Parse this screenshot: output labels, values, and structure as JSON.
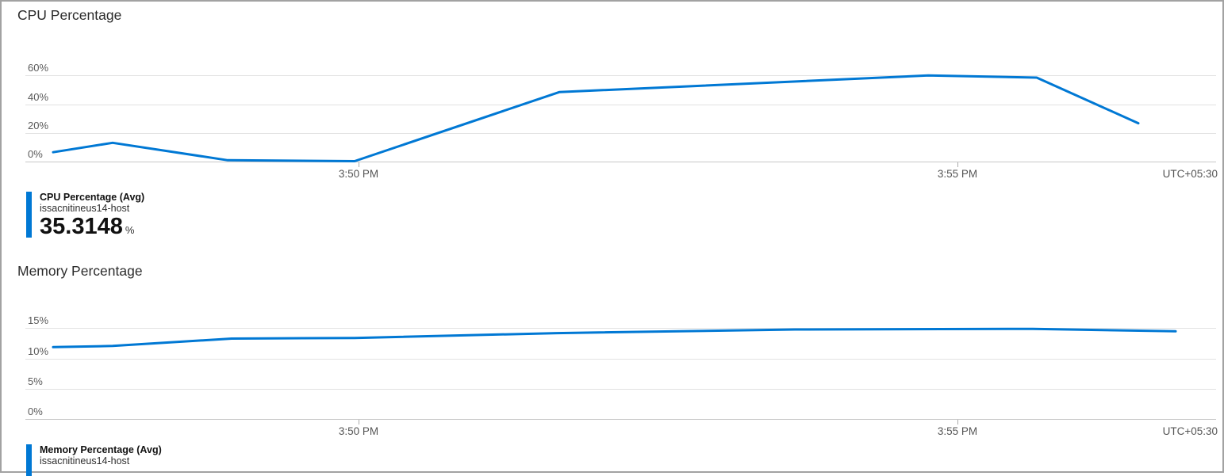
{
  "chart_data": [
    {
      "type": "line",
      "title": "CPU Percentage",
      "color": "#0078d4",
      "grid": true,
      "ylim": [
        0,
        70
      ],
      "x_unit": "fraction-of-plot-width",
      "y_axis": {
        "max": 70,
        "ticks": [
          {
            "v": 0,
            "label": "0%"
          },
          {
            "v": 20,
            "label": "20%"
          },
          {
            "v": 40,
            "label": "40%"
          },
          {
            "v": 60,
            "label": "60%"
          }
        ]
      },
      "x_axis": {
        "ticks": [
          {
            "pos": 0.2798,
            "label": "3:50 PM"
          },
          {
            "pos": 0.7828,
            "label": "3:55 PM"
          }
        ],
        "timezone_label": "UTC+05:30"
      },
      "series": [
        {
          "name": "CPU Percentage (Avg)",
          "resource": "issacnitineus14-host",
          "avg_display": "35.3148",
          "unit": "%",
          "points": [
            [
              0.0233,
              7
            ],
            [
              0.0733,
              13.5
            ],
            [
              0.1699,
              1.5
            ],
            [
              0.2765,
              0.8
            ],
            [
              0.4484,
              48.5
            ],
            [
              0.7582,
              60
            ],
            [
              0.8494,
              58.5
            ],
            [
              0.9347,
              27
            ]
          ]
        }
      ]
    },
    {
      "type": "line",
      "title": "Memory Percentage",
      "color": "#0078d4",
      "grid": true,
      "ylim": [
        0,
        17
      ],
      "x_unit": "fraction-of-plot-width",
      "y_axis": {
        "max": 17,
        "ticks": [
          {
            "v": 0,
            "label": "0%"
          },
          {
            "v": 5,
            "label": "5%"
          },
          {
            "v": 10,
            "label": "10%"
          },
          {
            "v": 15,
            "label": "15%"
          }
        ]
      },
      "x_axis": {
        "ticks": [
          {
            "pos": 0.2798,
            "label": "3:50 PM"
          },
          {
            "pos": 0.7828,
            "label": "3:55 PM"
          }
        ],
        "timezone_label": "UTC+05:30"
      },
      "series": [
        {
          "name": "Memory Percentage (Avg)",
          "resource": "issacnitineus14-host",
          "points": [
            [
              0.0233,
              11.9
            ],
            [
              0.0733,
              12.1
            ],
            [
              0.1732,
              13.3
            ],
            [
              0.2765,
              13.4
            ],
            [
              0.4464,
              14.2
            ],
            [
              0.6462,
              14.8
            ],
            [
              0.8461,
              14.9
            ],
            [
              0.966,
              14.5
            ]
          ]
        }
      ]
    }
  ]
}
